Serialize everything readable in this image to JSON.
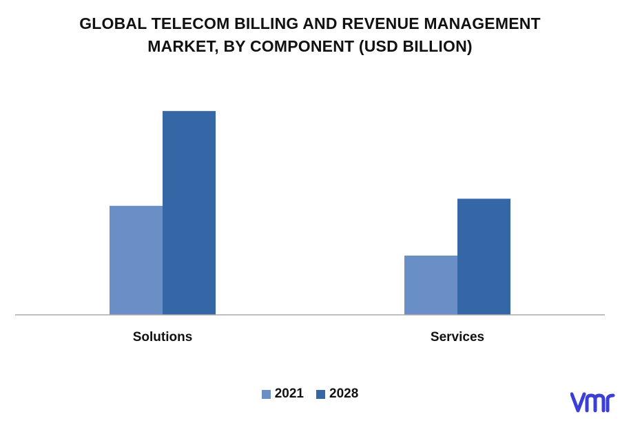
{
  "chart_data": {
    "type": "bar",
    "title_lines": [
      "GLOBAL TELECOM BILLING AND REVENUE MANAGEMENT",
      "MARKET, BY COMPONENT (USD BILLION)"
    ],
    "categories": [
      "Solutions",
      "Services"
    ],
    "series": [
      {
        "name": "2021",
        "values": [
          9.2,
          5.0
        ],
        "color": "#6a8fc7"
      },
      {
        "name": "2028",
        "values": [
          17.2,
          9.8
        ],
        "color": "#3566a6"
      }
    ],
    "ylim": [
      0,
      20
    ],
    "grid": false,
    "legend_position": "bottom-center",
    "axis_color": "#aaaaaa"
  },
  "brand": {
    "logo_text": "vmr",
    "logo_color": "#3b3fd6"
  }
}
